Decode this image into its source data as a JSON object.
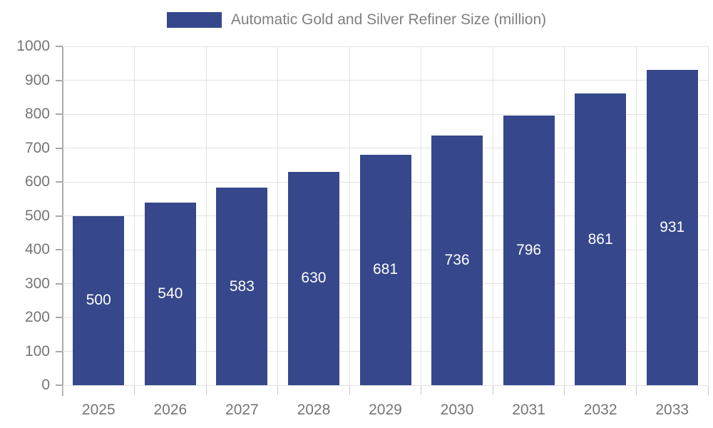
{
  "legend": {
    "label": "Automatic Gold and Silver Refiner Size (million)"
  },
  "chart_data": {
    "type": "bar",
    "title": "Automatic Gold and Silver Refiner Size (million)",
    "categories": [
      "2025",
      "2026",
      "2027",
      "2028",
      "2029",
      "2030",
      "2031",
      "2032",
      "2033"
    ],
    "values": [
      500,
      540,
      583,
      630,
      681,
      736,
      796,
      861,
      931
    ],
    "xlabel": "",
    "ylabel": "",
    "ylim": [
      0,
      1000
    ],
    "ytick_step": 100,
    "grid": true,
    "legend_position": "top-center",
    "series_name": "Automatic Gold and Silver Refiner Size (million)",
    "colors": {
      "bar": "#36488B",
      "bar_value_label": "#ffffff",
      "axis_text": "#757575",
      "legend_text": "#7f7f7f",
      "gridline": "#e2e2e2",
      "axis_line": "#a9a9a9"
    }
  }
}
